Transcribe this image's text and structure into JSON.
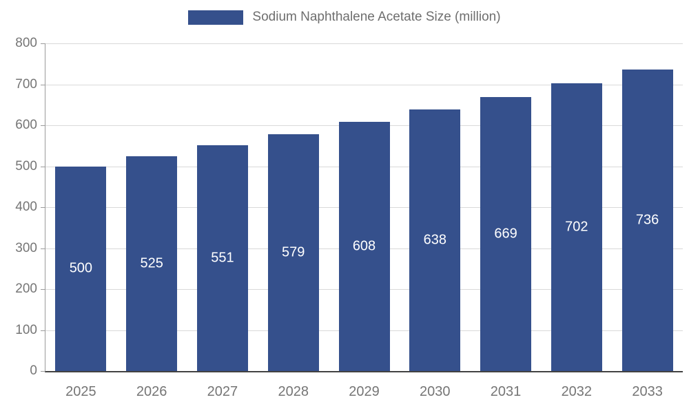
{
  "legend": {
    "label": "Sodium Naphthalene Acetate Size (million)"
  },
  "colors": {
    "bar": "#35508c",
    "grid": "#d9d9d9",
    "axis_left": "#9a9a9a",
    "axis_bottom": "#424242",
    "tick_text": "#757575",
    "legend_text": "#6e6e6e",
    "bar_label_text": "#ffffff"
  },
  "chart_data": {
    "type": "bar",
    "title": "Sodium Naphthalene Acetate Size (million)",
    "categories": [
      "2025",
      "2026",
      "2027",
      "2028",
      "2029",
      "2030",
      "2031",
      "2032",
      "2033"
    ],
    "values": [
      500,
      525,
      551,
      579,
      608,
      638,
      669,
      702,
      736
    ],
    "xlabel": "",
    "ylabel": "",
    "ylim": [
      0,
      800
    ],
    "yticks": [
      0,
      100,
      200,
      300,
      400,
      500,
      600,
      700,
      800
    ],
    "grid": true,
    "legend_position": "top-center",
    "data_labels": "inside-center-white",
    "bar_slot_fraction": 0.72
  }
}
